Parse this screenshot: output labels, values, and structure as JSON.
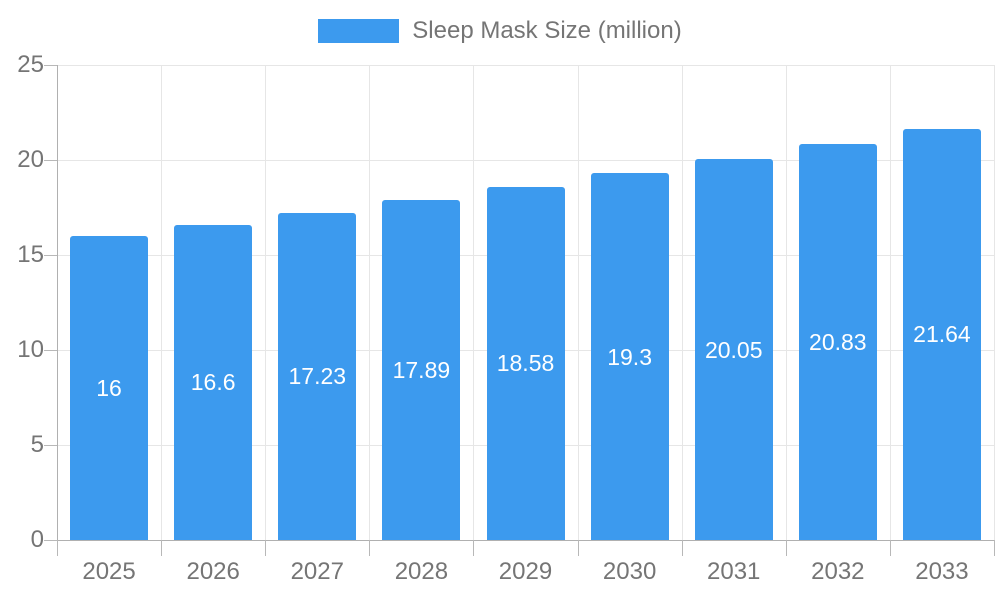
{
  "chart_data": {
    "type": "bar",
    "title": "",
    "legend": "Sleep Mask Size (million)",
    "legend_position": "top",
    "categories": [
      "2025",
      "2026",
      "2027",
      "2028",
      "2029",
      "2030",
      "2031",
      "2032",
      "2033"
    ],
    "series": [
      {
        "name": "Sleep Mask Size (million)",
        "values": [
          16,
          16.6,
          17.23,
          17.89,
          18.58,
          19.3,
          20.05,
          20.83,
          21.64
        ],
        "labels": [
          "16",
          "16.6",
          "17.23",
          "17.89",
          "18.58",
          "19.3",
          "20.05",
          "20.83",
          "21.64"
        ]
      }
    ],
    "xlabel": "",
    "ylabel": "",
    "ylim": [
      0,
      25
    ],
    "yticks": [
      "0",
      "5",
      "10",
      "15",
      "20",
      "25"
    ],
    "grid": true,
    "colors": {
      "bar": "#3C9AEE",
      "data_label": "#FFFFFF",
      "axis_text": "#757575",
      "legend_text": "#757575",
      "grid_line": "#E6E6E6",
      "axis_line": "#B0B0B0",
      "tick_line": "#B8B8B8",
      "background": "#FFFFFF"
    }
  }
}
